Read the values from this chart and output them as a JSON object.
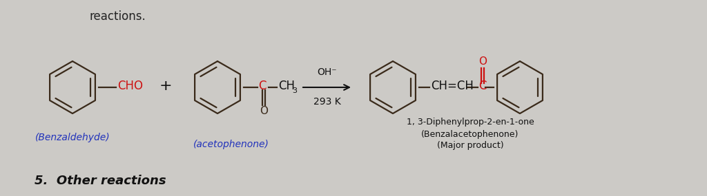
{
  "background_color": "#cccac6",
  "title_text": "reactions.",
  "title_color": "#222222",
  "title_fontsize": 12,
  "footer_text": "5.  Other reactions",
  "footer_color": "#111111",
  "footer_fontsize": 13,
  "label1_text": "(Benzaldehyde)",
  "label1_color": "#2233bb",
  "label1_fontsize": 10,
  "label2_text": "(acetophenone)",
  "label2_color": "#2233bb",
  "label2_fontsize": 10,
  "product_line1": "1, 3-Diphenylprop-2-en-1-one",
  "product_line2": "(Benzalacetophenone)",
  "product_line3": "(Major product)",
  "product_fontsize": 9,
  "product_color": "#111111",
  "ring_color": "#3a2a1a",
  "text_color": "#111111",
  "red_color": "#cc1111",
  "arrow_color": "#333333"
}
